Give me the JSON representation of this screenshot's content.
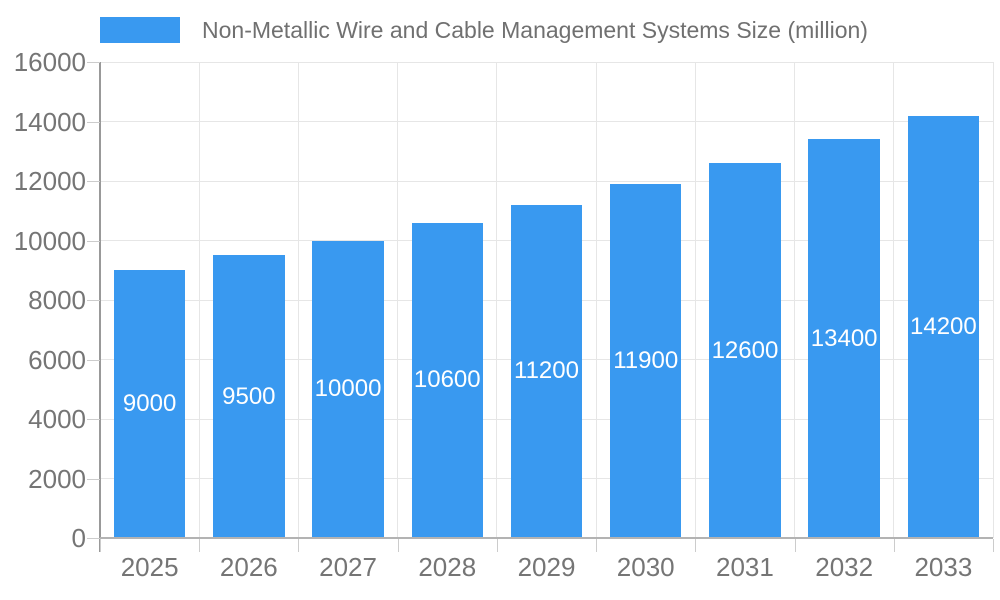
{
  "chart_data": {
    "type": "bar",
    "title": "",
    "legend": "Non-Metallic Wire and Cable Management Systems Size (million)",
    "legend_position": "top-left",
    "categories": [
      "2025",
      "2026",
      "2027",
      "2028",
      "2029",
      "2030",
      "2031",
      "2032",
      "2033"
    ],
    "series": [
      {
        "name": "Non-Metallic Wire and Cable Management Systems Size (million)",
        "values": [
          9000,
          9500,
          10000,
          10600,
          11200,
          11900,
          12600,
          13400,
          14200
        ]
      }
    ],
    "xlabel": "",
    "ylabel": "",
    "ylim": [
      0,
      16000
    ],
    "ytick_step": 2000,
    "grid": true,
    "bar_labels_visible": true,
    "colors": {
      "bar": "#3999F0",
      "bar_label_text": "#FFFFFF",
      "axis_text": "#757575",
      "legend_text": "#707070",
      "gridline": "#E6E6E6",
      "tick": "#CCCCCC",
      "y_axis_line": "#999999",
      "x_axis_line": "#B3B3B3",
      "background": "#FFFFFF"
    }
  }
}
